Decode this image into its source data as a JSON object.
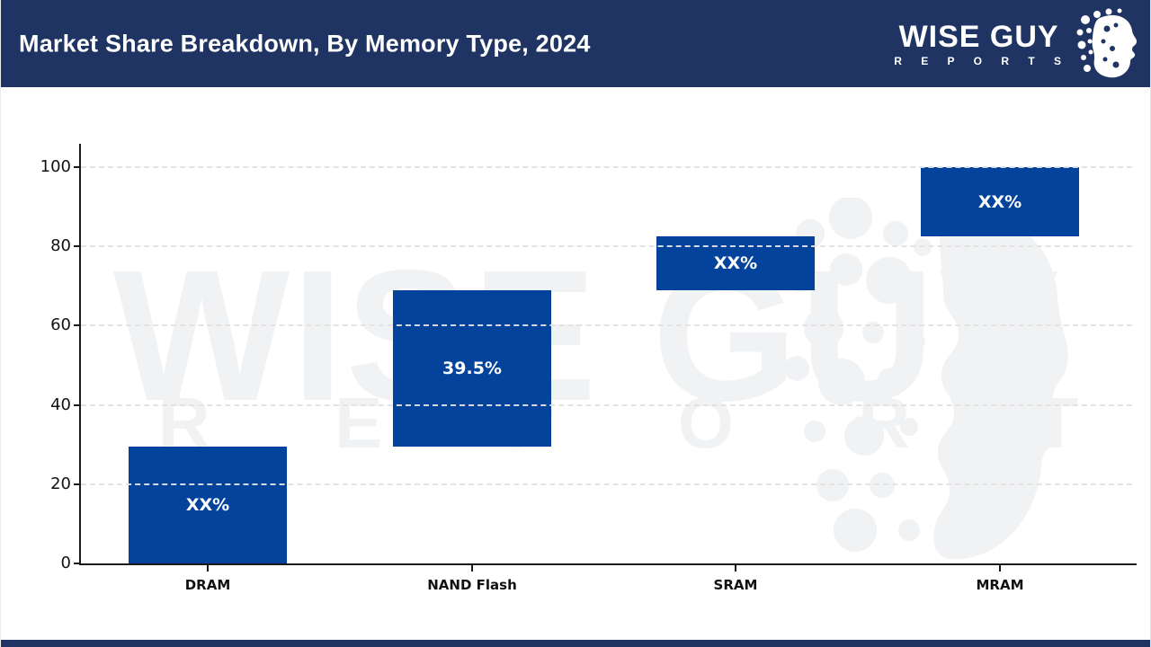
{
  "header": {
    "title": "Market Share Breakdown, By Memory Type, 2024",
    "logo": {
      "line1": "WISE GUY",
      "line2": "R E P O R T S"
    }
  },
  "watermark": {
    "line1": "WISE GUY",
    "line2": "R E P O R T S"
  },
  "colors": {
    "header_navy": "#1f3462",
    "bar_blue": "#04439b",
    "grid_gray": "#e1e1e1",
    "watermark_gray": "#f1f2f4",
    "axis_black": "#1a1a1a",
    "label_white": "#ffffff"
  },
  "chart_data": {
    "type": "bar",
    "variant": "floating-waterfall",
    "title": "Market Share Breakdown, By Memory Type, 2024",
    "units": "percent market share",
    "categories": [
      "DRAM",
      "NAND Flash",
      "SRAM",
      "MRAM"
    ],
    "segments": [
      {
        "category": "DRAM",
        "start": 0,
        "end": 29.5,
        "value": 29.5,
        "label": "XX%"
      },
      {
        "category": "NAND Flash",
        "start": 29.5,
        "end": 69,
        "value": 39.5,
        "label": "39.5%"
      },
      {
        "category": "SRAM",
        "start": 69,
        "end": 82.5,
        "value": 13.5,
        "label": "XX%"
      },
      {
        "category": "MRAM",
        "start": 82.5,
        "end": 100,
        "value": 17.5,
        "label": "XX%"
      }
    ],
    "xlabel": "",
    "ylabel": "",
    "yticks": [
      0,
      20,
      40,
      60,
      80,
      100
    ],
    "ylim": [
      0,
      106
    ],
    "grid": "horizontal-dashed-over-bars",
    "legend": "none",
    "bar_color": "#04439b",
    "bar_label_color": "#ffffff"
  }
}
